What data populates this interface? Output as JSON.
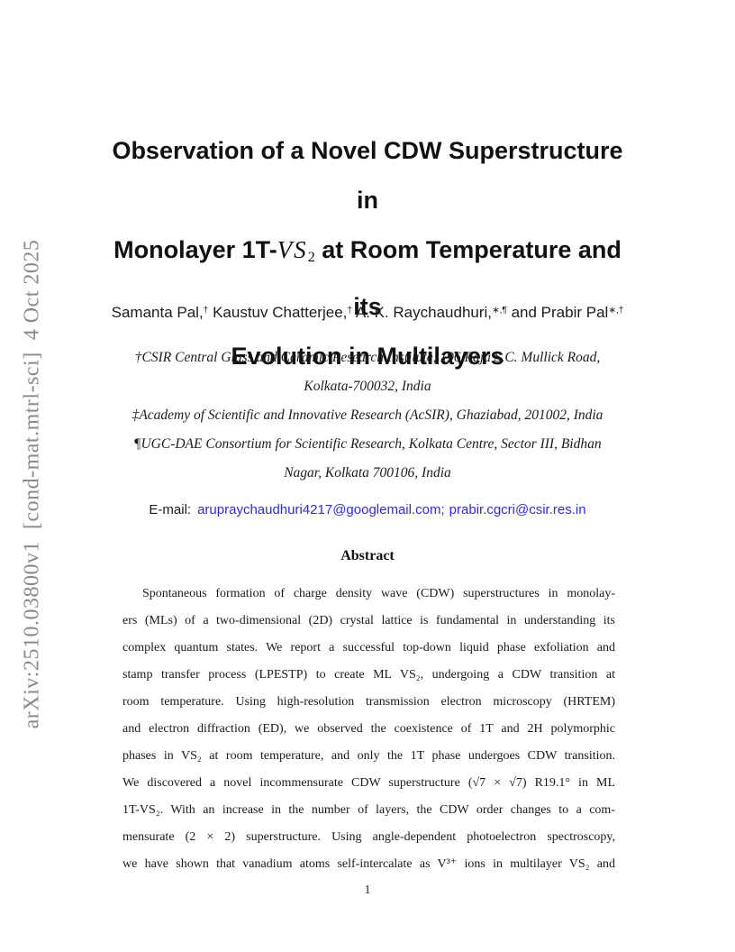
{
  "arxiv_stamp": {
    "text": "arXiv:2510.03800v1  [cond-mat.mtrl-sci]  4 Oct 2025",
    "color": "#8a8a8a"
  },
  "title": {
    "lines": [
      [
        {
          "t": "Observation of a Novel CDW Superstructure in",
          "s": "b"
        }
      ],
      [
        {
          "t": "Monolayer 1T-",
          "s": "b"
        },
        {
          "t": "VS",
          "s": "math"
        },
        {
          "t": "2",
          "s": "msub"
        },
        {
          "t": " at Room Temperature and its",
          "s": "b"
        }
      ],
      [
        {
          "t": "Evolution in Multilayers",
          "s": "b"
        }
      ]
    ]
  },
  "authors": {
    "segments": [
      {
        "t": "Samanta Pal,",
        "s": "p"
      },
      {
        "t": "†",
        "s": "sup"
      },
      {
        "t": " Kaustuv Chatterjee,",
        "s": "p"
      },
      {
        "t": "†",
        "s": "sup"
      },
      {
        "t": " A. K. Raychaudhuri,",
        "s": "p"
      },
      {
        "t": "∗,¶",
        "s": "sup"
      },
      {
        "t": " and Prabir Pal",
        "s": "p"
      },
      {
        "t": "∗,†",
        "s": "sup"
      }
    ]
  },
  "affiliations": {
    "lines": [
      "†CSIR Central Glass and Ceramic Research Institute, 196 Raja S.C. Mullick Road,",
      "Kolkata-700032, India",
      "‡Academy of Scientific and Innovative Research (AcSIR), Ghaziabad, 201002, India",
      "¶UGC-DAE Consortium for Scientific Research, Kolkata Centre, Sector III, Bidhan",
      "Nagar, Kolkata 700106, India"
    ]
  },
  "email": {
    "label": "E-mail:",
    "link1": "arupraychaudhuri4217@googlemail.com",
    "separator": ";",
    "link2": "prabir.cgcri@csir.res.in",
    "link_color": "#2b2bf0"
  },
  "abstract": {
    "heading": "Abstract",
    "lines": [
      "Spontaneous formation of charge density wave (CDW) superstructures in monolay-",
      "ers (MLs) of a two-dimensional (2D) crystal lattice is fundamental in understanding its",
      "complex quantum states. We report a successful top-down liquid phase exfoliation and",
      "stamp transfer process (LPESTP) to create ML VS₂, undergoing a CDW transition at",
      "room temperature. Using high-resolution transmission electron microscopy (HRTEM)",
      "and electron diffraction (ED), we observed the coexistence of 1T and 2H polymorphic",
      "phases in VS₂ at room temperature, and only the 1T phase undergoes CDW transition.",
      "We discovered a novel incommensurate CDW superstructure (√7 × √7) R19.1° in ML",
      "1T-VS₂. With an increase in the number of layers, the CDW order changes to a com-",
      "mensurate (2 × 2) superstructure. Using angle-dependent photoelectron spectroscopy,",
      "we have shown that vanadium atoms self-intercalate as V³⁺ ions in multilayer VS₂ and"
    ]
  },
  "page": {
    "number": "1"
  }
}
